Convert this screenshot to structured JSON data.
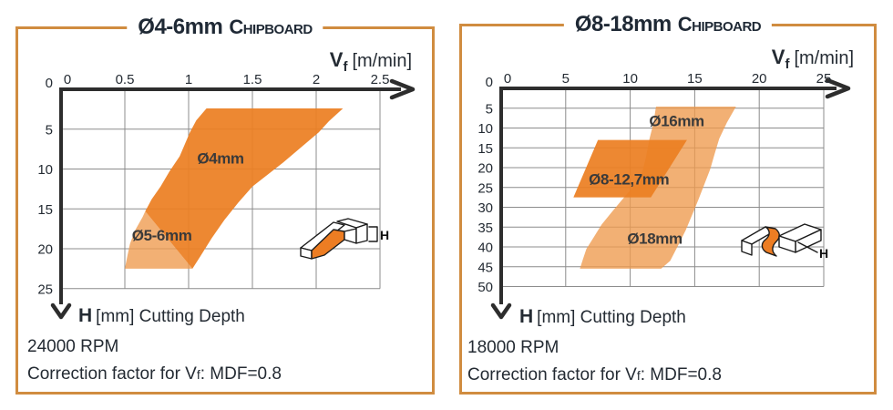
{
  "colors": {
    "band_dark": "#EC7F22",
    "band_light": "#EE9A4D",
    "frame": "#D08C40",
    "axis": "#2D2D2D",
    "grid": "#8C8C8C",
    "text": "#242B33",
    "icon_orange": "#ED7D23"
  },
  "charts": [
    {
      "title_size": "Ø4-6mm",
      "title_material": "Chipboard",
      "vf_label": {
        "symbol": "V",
        "subscript": "f",
        "unit": "[m/min]"
      },
      "x_ticks": [
        "0",
        "0.5",
        "1",
        "1.5",
        "2",
        "2.5"
      ],
      "y_ticks": [
        "0",
        "5",
        "10",
        "15",
        "20",
        "25"
      ],
      "depth_label": {
        "symbol": "H",
        "unit": "[mm]",
        "text": "Cutting Depth"
      },
      "rpm": "24000 RPM",
      "correction": {
        "prefix": "Correction factor for V",
        "subscript": "f",
        "suffix": ": MDF=0.8"
      }
    },
    {
      "title_size": "Ø8-18mm",
      "title_material": "Chipboard",
      "vf_label": {
        "symbol": "V",
        "subscript": "f",
        "unit": "[m/min]"
      },
      "x_ticks": [
        "0",
        "5",
        "10",
        "15",
        "20",
        "25"
      ],
      "y_ticks": [
        "0",
        "5",
        "10",
        "15",
        "20",
        "25",
        "30",
        "35",
        "40",
        "45",
        "50"
      ],
      "depth_label": {
        "symbol": "H",
        "unit": "[mm]",
        "text": "Cutting Depth"
      },
      "rpm": "18000 RPM",
      "correction": {
        "prefix": "Correction factor for V",
        "subscript": "f",
        "suffix": ": MDF=0.8"
      }
    }
  ],
  "chart_data": [
    {
      "type": "area",
      "title": "Ø4-6mm Chipboard",
      "xlabel": "Vf [m/min]",
      "ylabel": "H [mm] Cutting Depth",
      "xlim": [
        0,
        2.5
      ],
      "ylim": [
        0,
        25
      ],
      "y_axis_inverted": true,
      "grid": true,
      "series": [
        {
          "name": "Ø5-6mm",
          "shade": "light",
          "labels": [
            {
              "text": "Ø5-6mm",
              "x": 0.79,
              "h": 18.3
            }
          ],
          "polygon": [
            [
              0.66,
              15.3
            ],
            [
              1.03,
              22.5
            ],
            [
              0.5,
              22.5
            ],
            [
              0.52,
              20.9
            ],
            [
              0.54,
              19.4
            ],
            [
              0.58,
              17.7
            ],
            [
              0.64,
              16.0
            ]
          ]
        },
        {
          "name": "Ø4mm",
          "shade": "dark",
          "labels": [
            {
              "text": "Ø4mm",
              "x": 1.25,
              "h": 8.6
            }
          ],
          "polygon": [
            [
              1.14,
              2.4
            ],
            [
              2.21,
              2.4
            ],
            [
              2.1,
              4.0
            ],
            [
              2.02,
              5.4
            ],
            [
              1.88,
              7.3
            ],
            [
              1.74,
              9.2
            ],
            [
              1.62,
              10.7
            ],
            [
              1.5,
              12.2
            ],
            [
              1.39,
              14.2
            ],
            [
              1.28,
              16.4
            ],
            [
              1.18,
              18.7
            ],
            [
              1.09,
              21.0
            ],
            [
              1.03,
              22.5
            ],
            [
              0.66,
              15.3
            ],
            [
              0.71,
              13.8
            ],
            [
              0.78,
              12.2
            ],
            [
              0.85,
              10.3
            ],
            [
              0.93,
              8.4
            ],
            [
              0.97,
              6.9
            ],
            [
              1.01,
              5.4
            ],
            [
              1.06,
              3.9
            ]
          ]
        }
      ],
      "annotations": [
        "24000 RPM",
        "Correction factor for Vf: MDF=0.8"
      ]
    },
    {
      "type": "area",
      "title": "Ø8-18mm Chipboard",
      "xlabel": "Vf [m/min]",
      "ylabel": "H [mm] Cutting Depth",
      "xlim": [
        0,
        25
      ],
      "ylim": [
        0,
        50
      ],
      "y_axis_inverted": true,
      "grid": true,
      "series": [
        {
          "name": "Ø16mm / Ø18mm",
          "shade": "light",
          "labels": [
            {
              "text": "Ø16mm",
              "x": 13.6,
              "h": 8.2
            },
            {
              "text": "Ø18mm",
              "x": 11.9,
              "h": 37.8
            }
          ],
          "polygon": [
            [
              12.0,
              4.6
            ],
            [
              18.2,
              4.6
            ],
            [
              17.5,
              8.6
            ],
            [
              16.9,
              12.7
            ],
            [
              16.55,
              16.5
            ],
            [
              16.2,
              20.4
            ],
            [
              15.75,
              24.2
            ],
            [
              15.3,
              28.0
            ],
            [
              14.8,
              31.9
            ],
            [
              14.3,
              35.8
            ],
            [
              13.7,
              39.7
            ],
            [
              13.1,
              43.5
            ],
            [
              12.4,
              45.5
            ],
            [
              6.1,
              45.5
            ],
            [
              6.35,
              43.0
            ],
            [
              6.6,
              40.5
            ],
            [
              7.2,
              37.4
            ],
            [
              7.8,
              34.3
            ],
            [
              8.6,
              31.1
            ],
            [
              9.4,
              28.0
            ],
            [
              10.1,
              25.3
            ],
            [
              10.8,
              22.7
            ],
            [
              11.2,
              17.7
            ],
            [
              11.5,
              12.7
            ],
            [
              11.8,
              8.8
            ]
          ]
        },
        {
          "name": "Ø8-12,7mm",
          "shade": "dark",
          "labels": [
            {
              "text": "Ø8-12,7mm",
              "x": 9.9,
              "h": 22.9
            }
          ],
          "polygon": [
            [
              7.5,
              13.0
            ],
            [
              14.4,
              13.0
            ],
            [
              11.6,
              27.5
            ],
            [
              5.6,
              27.5
            ]
          ]
        }
      ],
      "annotations": [
        "18000 RPM",
        "Correction factor for Vf: MDF=0.8"
      ]
    }
  ]
}
